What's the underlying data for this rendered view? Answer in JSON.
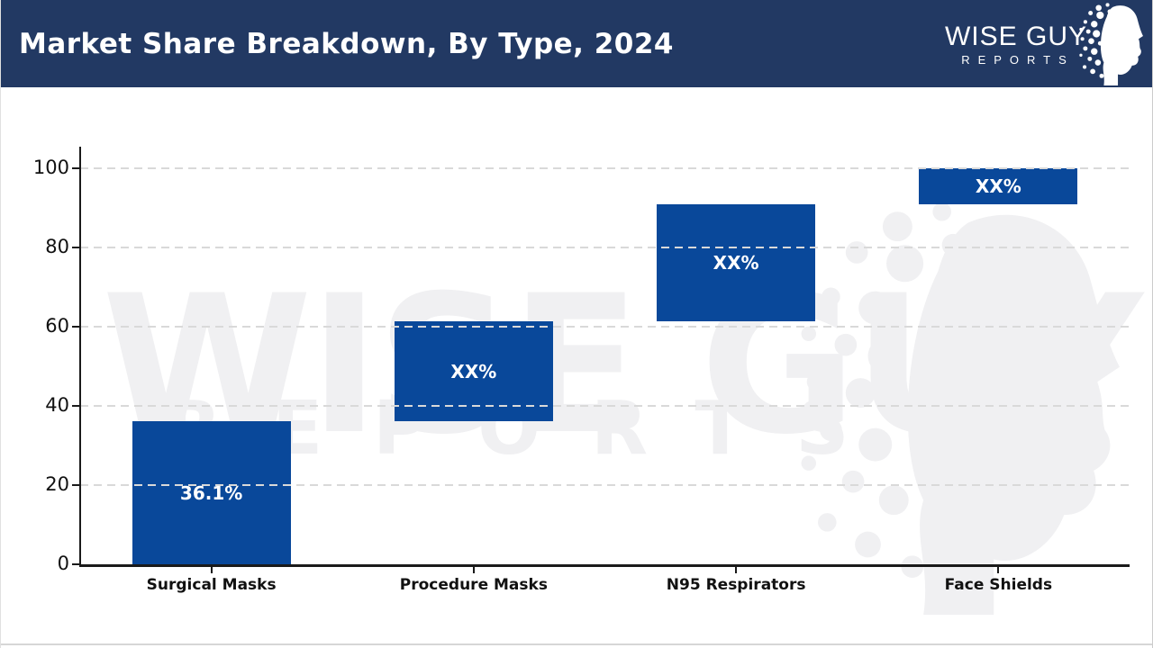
{
  "header": {
    "title": "Market Share Breakdown, By Type, 2024",
    "logo": {
      "line1": "WISE GUY",
      "line2": "REPORTS"
    }
  },
  "watermark": {
    "line1": "WISE GUY",
    "line2": "REPORTS"
  },
  "chart_data": {
    "type": "bar",
    "subtype": "waterfall",
    "title": "Market Share Breakdown, By Type, 2024",
    "categories": [
      "Surgical Masks",
      "Procedure Masks",
      "N95 Respirators",
      "Face Shields"
    ],
    "segments": [
      {
        "category": "Surgical Masks",
        "start": 0,
        "end": 36.1,
        "label": "36.1%"
      },
      {
        "category": "Procedure Masks",
        "start": 36.1,
        "end": 61.3,
        "label": "XX%"
      },
      {
        "category": "N95 Respirators",
        "start": 61.3,
        "end": 90.8,
        "label": "XX%"
      },
      {
        "category": "Face Shields",
        "start": 90.8,
        "end": 100,
        "label": "XX%"
      }
    ],
    "xlabel": "",
    "ylabel": "",
    "ylim": [
      0,
      105
    ],
    "yticks": [
      0,
      20,
      40,
      60,
      80,
      100
    ],
    "grid": "horizontal-dashed",
    "legend": "none",
    "bar_color": "#09489a",
    "bar_label_color": "#ffffff",
    "axis_color": "#1a1a1a",
    "gridline_color": "#d9d9d9"
  }
}
